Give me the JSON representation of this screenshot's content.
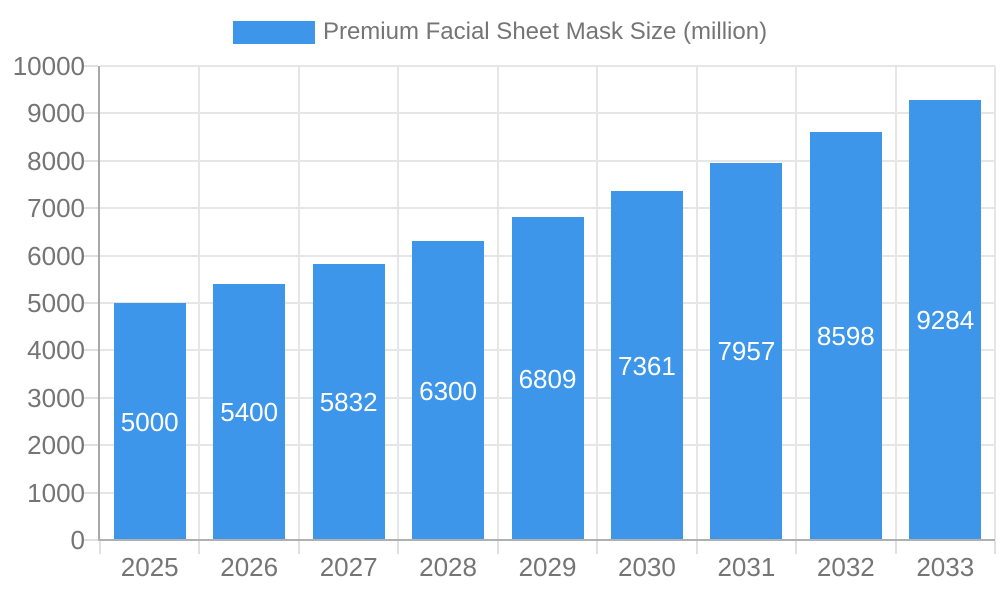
{
  "legend": {
    "label": "Premium Facial Sheet Mask Size (million)"
  },
  "chart_data": {
    "type": "bar",
    "title": "Premium Facial Sheet Mask Size (million)",
    "categories": [
      "2025",
      "2026",
      "2027",
      "2028",
      "2029",
      "2030",
      "2031",
      "2032",
      "2033"
    ],
    "series": [
      {
        "name": "Premium Facial Sheet Mask Size (million)",
        "values": [
          5000,
          5400,
          5832,
          6300,
          6809,
          7361,
          7957,
          8598,
          9284
        ]
      }
    ],
    "bar_value_labels": [
      "5000",
      "5400",
      "5832",
      "6300",
      "6809",
      "7361",
      "7957",
      "8598",
      "9284"
    ],
    "xlabel": "",
    "ylabel": "",
    "ylim": [
      0,
      10000
    ],
    "ytick_step": 1000,
    "ytick_labels": [
      "0",
      "1000",
      "2000",
      "3000",
      "4000",
      "5000",
      "6000",
      "7000",
      "8000",
      "9000",
      "10000"
    ],
    "grid": true,
    "legend_position": "top-center",
    "colors": {
      "bar": "#3d96e9",
      "bar_value_text": "#ffffff",
      "axis_text": "#757575",
      "gridline": "#e6e6e6",
      "tick": "#e0e0e0",
      "axis_line": "#b0b0b0"
    }
  }
}
